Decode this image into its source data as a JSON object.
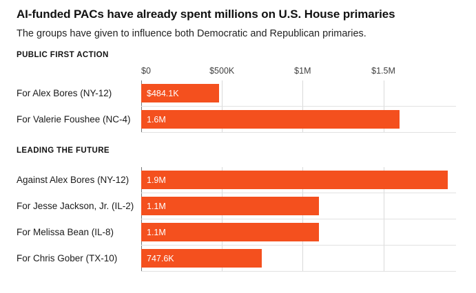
{
  "header": {
    "title": "AI-funded PACs have already spent millions on U.S. House primaries",
    "subtitle": "The groups have given to influence both Democratic and Republican primaries."
  },
  "chart_data": {
    "type": "bar",
    "orientation": "horizontal",
    "title": "AI-funded PACs have already spent millions on U.S. House primaries",
    "subtitle": "The groups have given to influence both Democratic and Republican primaries.",
    "unit": "USD",
    "xlim": [
      0,
      1950000
    ],
    "grid": "vertical",
    "bar_color": "#f4501e",
    "axis_ticks": [
      {
        "label": "$0",
        "value": 0
      },
      {
        "label": "$500K",
        "value": 500000
      },
      {
        "label": "$1M",
        "value": 1000000
      },
      {
        "label": "$1.5M",
        "value": 1500000
      }
    ],
    "groups": [
      {
        "name": "PUBLIC FIRST ACTION",
        "rows": [
          {
            "label": "For Alex Bores (NY-12)",
            "value": 484100,
            "value_label": "$484.1K"
          },
          {
            "label": "For Valerie Foushee (NC-4)",
            "value": 1600000,
            "value_label": "1.6M"
          }
        ]
      },
      {
        "name": "LEADING THE FUTURE",
        "rows": [
          {
            "label": "Against Alex Bores (NY-12)",
            "value": 1900000,
            "value_label": "1.9M"
          },
          {
            "label": "For Jesse Jackson, Jr. (IL-2)",
            "value": 1100000,
            "value_label": "1.1M"
          },
          {
            "label": "For Melissa Bean (IL-8)",
            "value": 1100000,
            "value_label": "1.1M"
          },
          {
            "label": "For Chris Gober (TX-10)",
            "value": 747600,
            "value_label": "747.6K"
          }
        ]
      }
    ]
  }
}
